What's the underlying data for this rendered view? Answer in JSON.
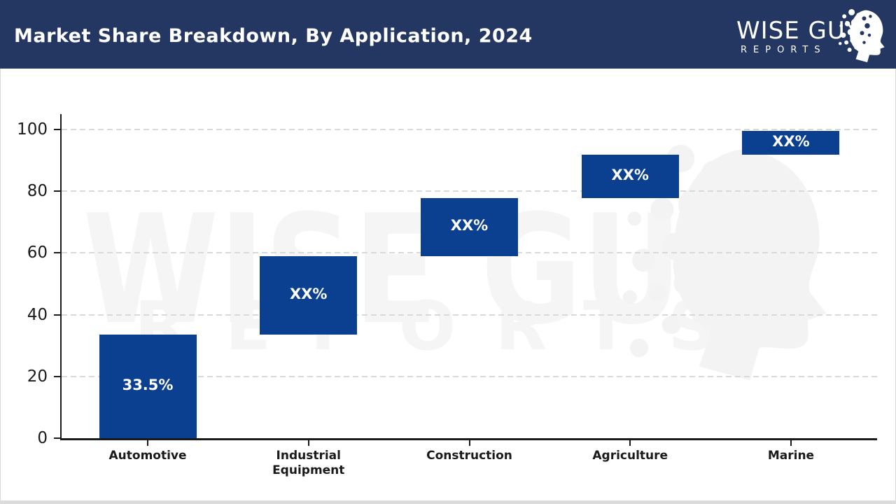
{
  "header": {
    "title": "Market Share Breakdown, By Application, 2024",
    "logo": {
      "line1": "WISE GUY",
      "line2": "REPORTS"
    }
  },
  "watermark": {
    "line1": "WISE GUY",
    "line2": "REPORTS"
  },
  "chart_data": {
    "type": "bar",
    "variant": "floating-waterfall",
    "title": "Market Share Breakdown, By Application, 2024",
    "categories": [
      "Automotive",
      "Industrial Equipment",
      "Construction",
      "Agriculture",
      "Marine"
    ],
    "bars": [
      {
        "category": "Automotive",
        "start": 0,
        "end": 33.5,
        "label": "33.5%"
      },
      {
        "category": "Industrial Equipment",
        "start": 33.5,
        "end": 59.0,
        "label": "XX%"
      },
      {
        "category": "Construction",
        "start": 59.0,
        "end": 77.8,
        "label": "XX%"
      },
      {
        "category": "Agriculture",
        "start": 77.8,
        "end": 91.8,
        "label": "XX%"
      },
      {
        "category": "Marine",
        "start": 91.8,
        "end": 99.6,
        "label": "XX%"
      }
    ],
    "yticks": [
      0,
      20,
      40,
      60,
      80,
      100
    ],
    "ylim": [
      0,
      105
    ],
    "xlabel": "",
    "ylabel": "",
    "grid": "horizontal-dashed",
    "legend": "none",
    "bar_color": "#0b4091",
    "bar_label_color": "#ffffff",
    "header_color": "#243763"
  }
}
